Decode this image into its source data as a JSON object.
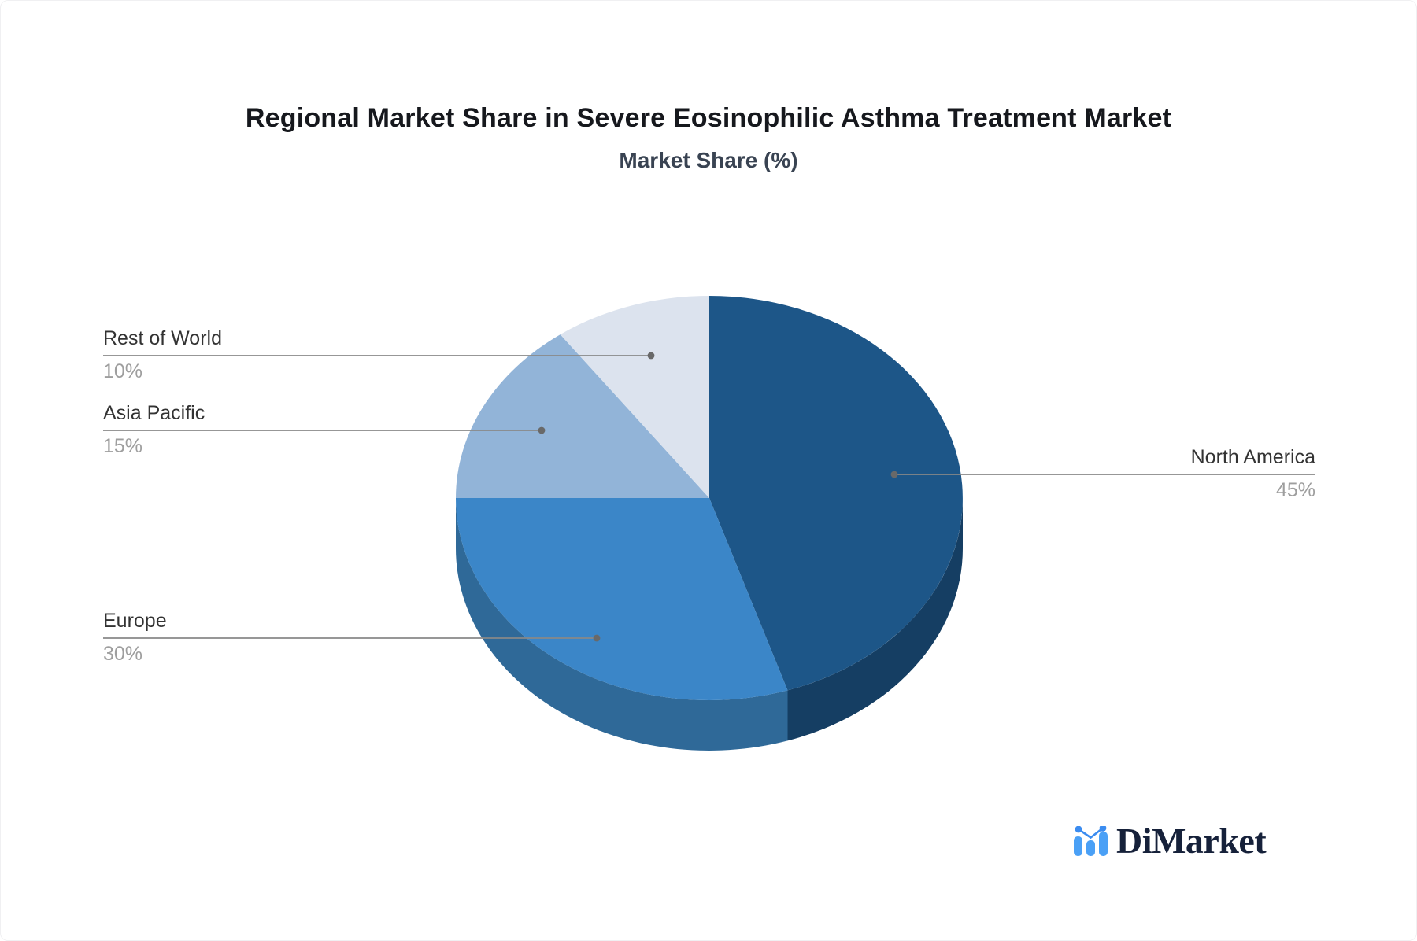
{
  "header": {
    "title": "Regional Market Share in Severe Eosinophilic Asthma Treatment Market",
    "subtitle": "Market Share (%)"
  },
  "chart_data": {
    "type": "pie",
    "style": "3d",
    "title": "Regional Market Share in Severe Eosinophilic Asthma Treatment Market",
    "value_label": "Market Share (%)",
    "start_angle_deg": 0,
    "direction": "clockwise",
    "slices": [
      {
        "label": "North America",
        "value": 45,
        "display": "45%",
        "color": "#1d5688",
        "side_color": "#153e63",
        "label_side": "right"
      },
      {
        "label": "Europe",
        "value": 30,
        "display": "30%",
        "color": "#3b86c8",
        "side_color": "#2f6998",
        "label_side": "left"
      },
      {
        "label": "Asia Pacific",
        "value": 15,
        "display": "15%",
        "color": "#92b4d8",
        "label_side": "left"
      },
      {
        "label": "Rest of World",
        "value": 10,
        "display": "10%",
        "color": "#dce3ee",
        "label_side": "left"
      }
    ]
  },
  "brand": {
    "name": "DiMarket"
  },
  "colors": {
    "background": "#ffffff",
    "title": "#16181d",
    "subtitle": "#394352",
    "label_name": "#333333",
    "label_value": "#9e9e9e",
    "leader_line": "#888888",
    "leader_dot": "#696969",
    "logo_blue": "#4aa0f6",
    "logo_line_blue": "#3b8cf0",
    "logo_navy": "#16213a"
  }
}
